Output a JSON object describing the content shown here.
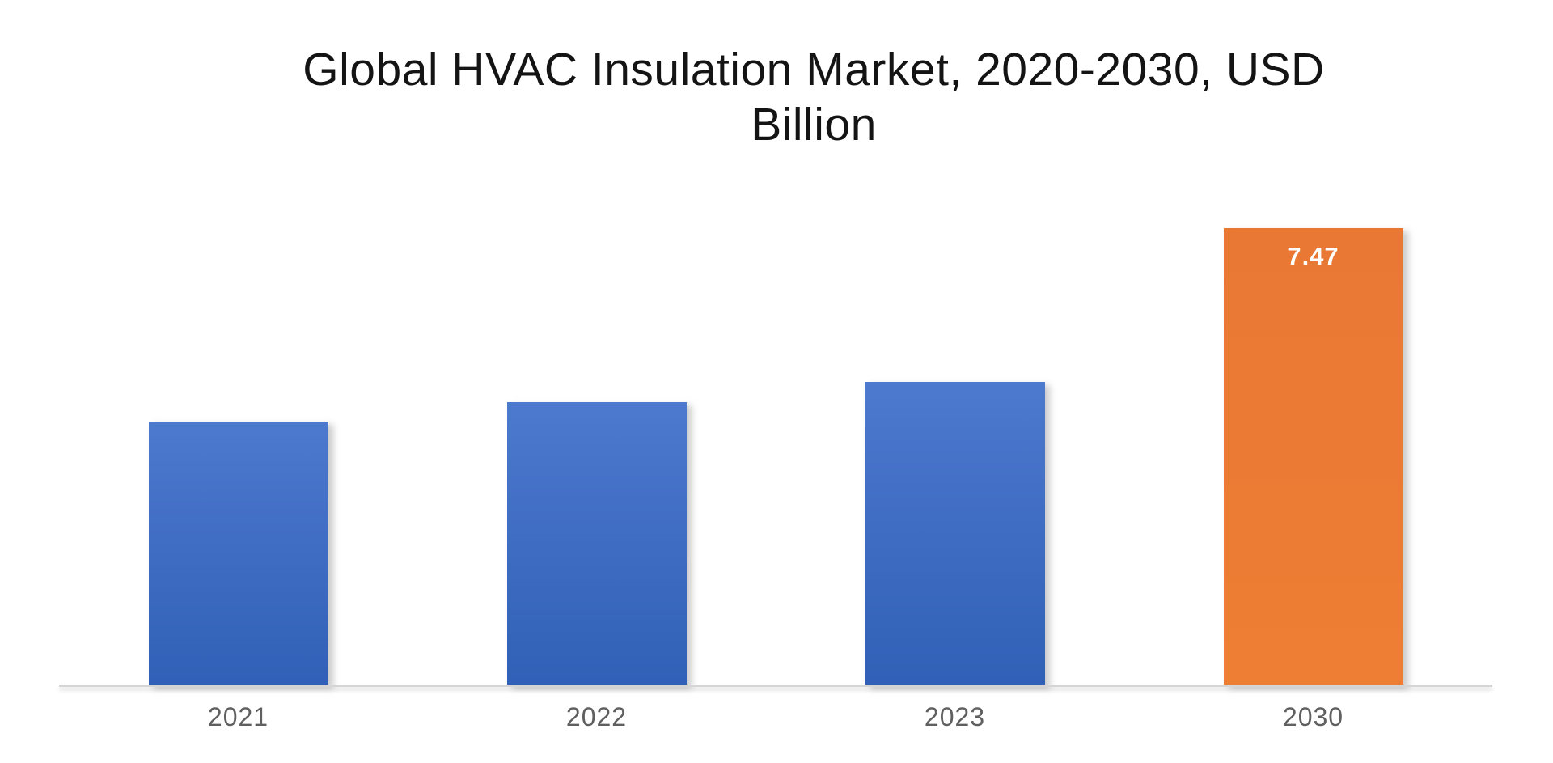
{
  "title": {
    "line1": "Global HVAC Insulation Market, 2020-2030, USD",
    "line2": "Billion"
  },
  "chart_data": {
    "type": "bar",
    "title": "Global HVAC Insulation Market, 2020-2030, USD Billion",
    "categories": [
      "2021",
      "2022",
      "2023",
      "2030"
    ],
    "values": [
      4.31,
      4.63,
      4.96,
      7.47
    ],
    "data_labels": [
      "",
      "",
      "",
      "7.47"
    ],
    "xlabel": "",
    "ylabel": "",
    "ylim": [
      0,
      8
    ],
    "grid": false,
    "legend": "none",
    "y_axis_visible": false,
    "bar_colors": [
      {
        "top": "#4D79CE",
        "bottom": "#3060B7"
      },
      {
        "top": "#4D79CE",
        "bottom": "#3060B7"
      },
      {
        "top": "#4D79CE",
        "bottom": "#3060B7"
      },
      {
        "top": "#E87834",
        "bottom": "#EE7E33"
      }
    ]
  },
  "colors": {
    "title_color": "#141414",
    "tick_label": "#5f5f5f",
    "axis_line": "#d5d5d5",
    "data_label_color": "#ffffff",
    "bar_blue": "#3E6CC4",
    "bar_orange": "#EC7D33",
    "background": "#ffffff"
  }
}
